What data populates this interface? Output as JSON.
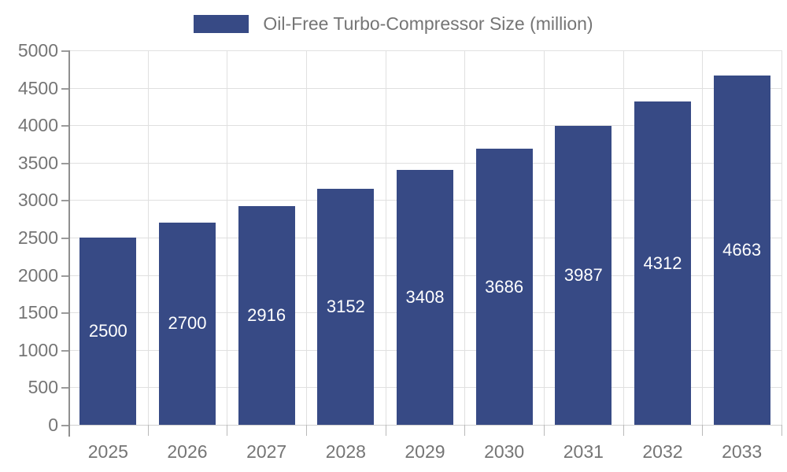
{
  "legend": {
    "label": "Oil-Free Turbo-Compressor Size (million)",
    "swatch_color": "#374A85"
  },
  "chart_data": {
    "type": "bar",
    "title": "Oil-Free Turbo-Compressor Size (million)",
    "categories": [
      "2025",
      "2026",
      "2027",
      "2028",
      "2029",
      "2030",
      "2031",
      "2032",
      "2033"
    ],
    "series": [
      {
        "name": "Oil-Free Turbo-Compressor Size (million)",
        "values": [
          2500,
          2700,
          2916,
          3152,
          3408,
          3686,
          3987,
          4312,
          4663
        ]
      }
    ],
    "xlabel": "",
    "ylabel": "",
    "ylim": [
      0,
      5000
    ],
    "ytick_step": 500,
    "yticks": [
      0,
      500,
      1000,
      1500,
      2000,
      2500,
      3000,
      3500,
      4000,
      4500,
      5000
    ],
    "grid": true,
    "legend_position": "top",
    "bar_color": "#374A85",
    "value_label_color": "#FFFFFF",
    "axis_text_color": "#757575",
    "gridline_color": "#E0E0E0",
    "axis_line_color": "#8F8F8F"
  }
}
